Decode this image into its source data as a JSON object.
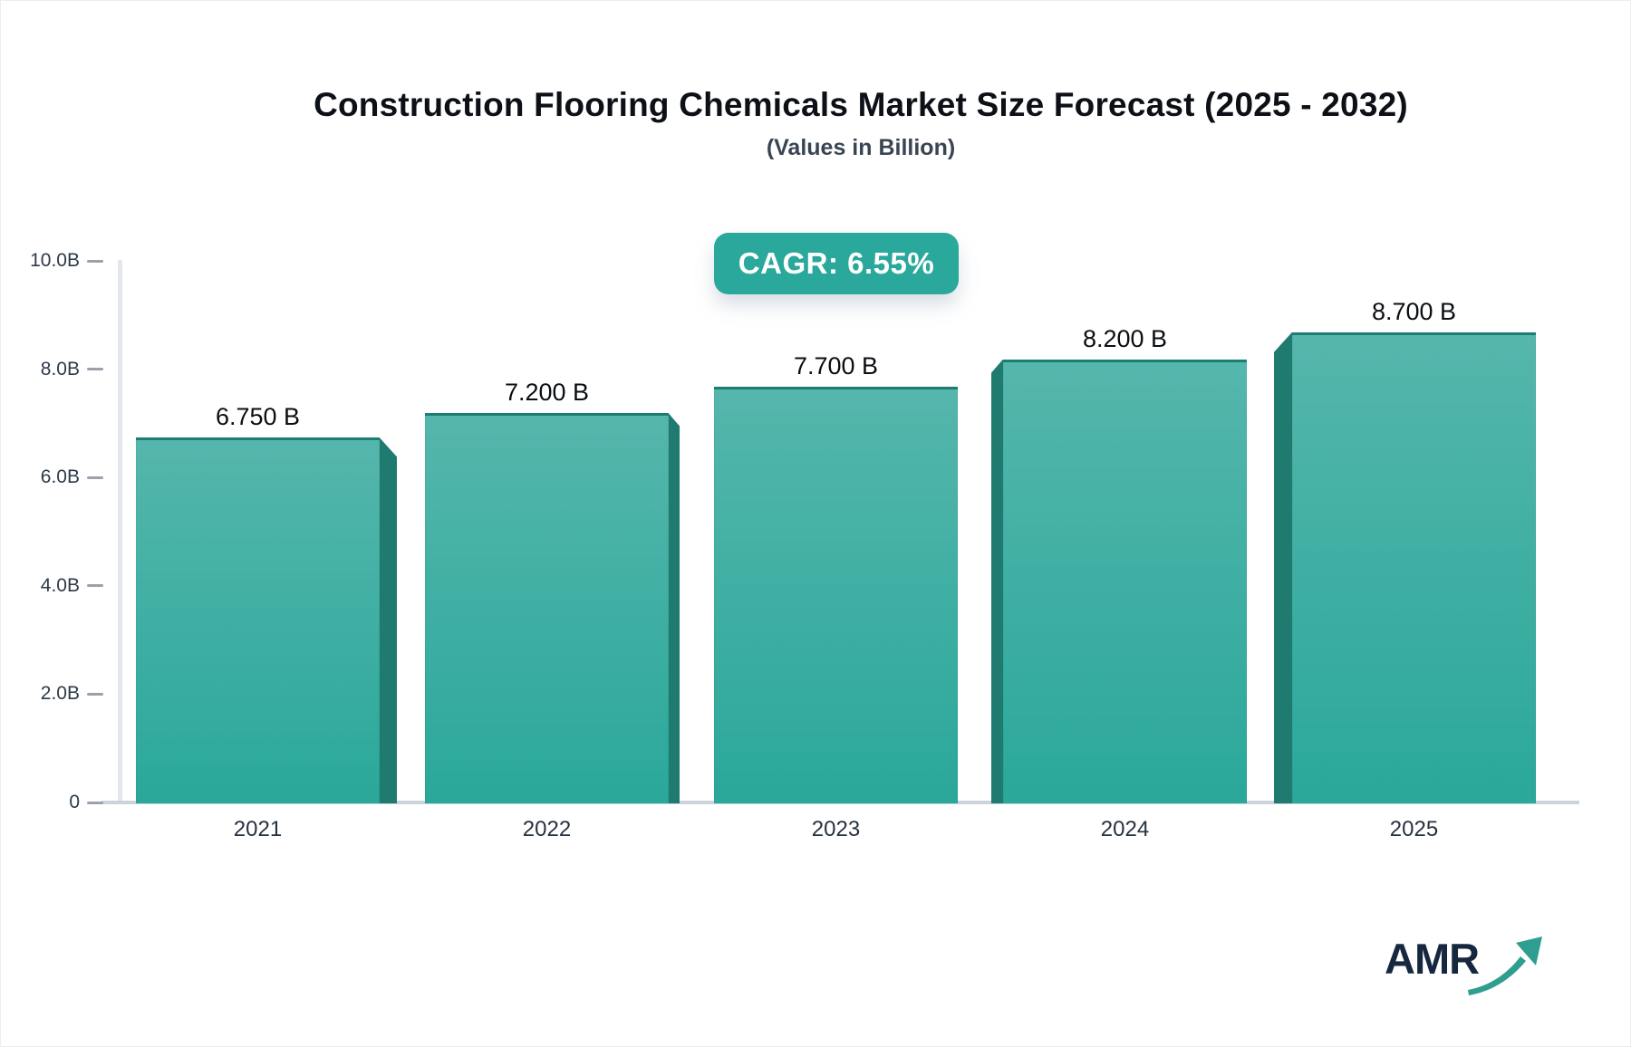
{
  "header": {
    "title": "Construction Flooring Chemicals Market Size Forecast (2025 - 2032)",
    "subtitle": "(Values in Billion)",
    "cagr_badge": "CAGR: 6.55%"
  },
  "chart_data": {
    "type": "bar",
    "title": "Construction Flooring Chemicals Market Size Forecast (2025 - 2032)",
    "subtitle": "(Values in Billion)",
    "annotation": "CAGR: 6.55%",
    "categories": [
      "2021",
      "2022",
      "2023",
      "2024",
      "2025"
    ],
    "values": [
      6.75,
      7.2,
      7.7,
      8.2,
      8.7
    ],
    "value_labels": [
      "6.750 B",
      "7.200 B",
      "7.700 B",
      "8.200 B",
      "8.700 B"
    ],
    "unit": "Billion",
    "ylim": [
      0,
      10
    ],
    "yticks": [
      {
        "label": "10.0B",
        "value": 10
      },
      {
        "label": "8.0B",
        "value": 8
      },
      {
        "label": "6.0B",
        "value": 6
      },
      {
        "label": "4.0B",
        "value": 4
      },
      {
        "label": "2.0B",
        "value": 2
      },
      {
        "label": "0",
        "value": 0
      }
    ],
    "grid": false,
    "legend": false,
    "colors": {
      "bar_gradient_top": "#55b6ac",
      "bar_gradient_bottom": "#2aa89a",
      "bar_side_3d": "#1f7a70",
      "bar_top_edge": "#1c7e73",
      "badge_background": "#2aa89b",
      "badge_text": "#ffffff",
      "axis_line": "#e3e7ec",
      "baseline": "#ccd3da",
      "tick_dash": "#98a1ac",
      "axis_text": "#2e3a49",
      "value_text": "#0b0e12",
      "logo_navy": "#16283f",
      "logo_teal": "#2f9e91"
    }
  },
  "logo": {
    "text": "AMR"
  }
}
